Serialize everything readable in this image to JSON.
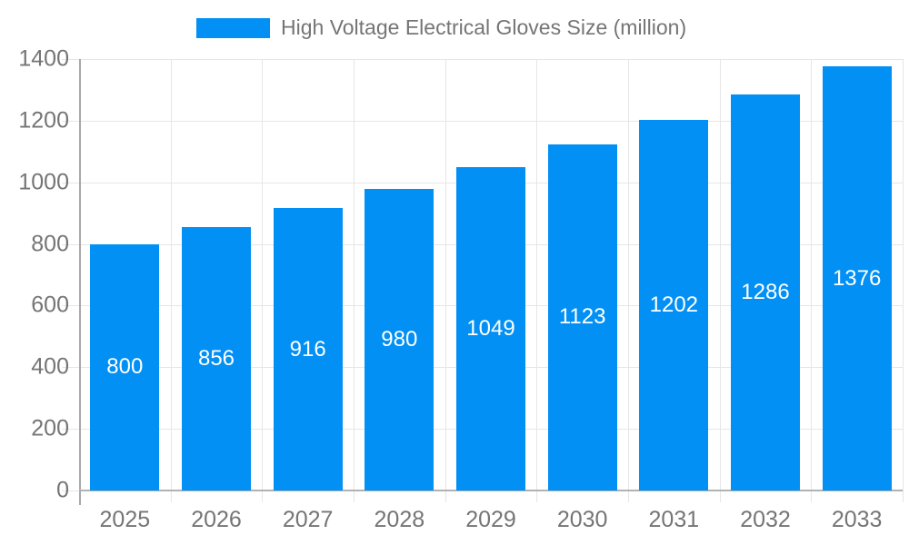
{
  "legend": {
    "label": "High Voltage Electrical Gloves Size (million)"
  },
  "chart_data": {
    "type": "bar",
    "title": "High Voltage Electrical Gloves Size (million)",
    "categories": [
      "2025",
      "2026",
      "2027",
      "2028",
      "2029",
      "2030",
      "2031",
      "2032",
      "2033"
    ],
    "values": [
      800,
      856,
      916,
      980,
      1049,
      1123,
      1202,
      1286,
      1376
    ],
    "xlabel": "",
    "ylabel": "",
    "ylim": [
      0,
      1400
    ],
    "ytick_step": 200,
    "ytick_labels": [
      "0",
      "200",
      "400",
      "600",
      "800",
      "1000",
      "1200",
      "1400"
    ],
    "grid": true,
    "legend_position": "top",
    "bar_color": "#0290f5",
    "value_label_color": "#ffffff",
    "axis_text_color": "#757575",
    "grid_color": "#e6e6e6",
    "axis_line_color": "#a8a8a8",
    "background_color": "#ffffff"
  }
}
